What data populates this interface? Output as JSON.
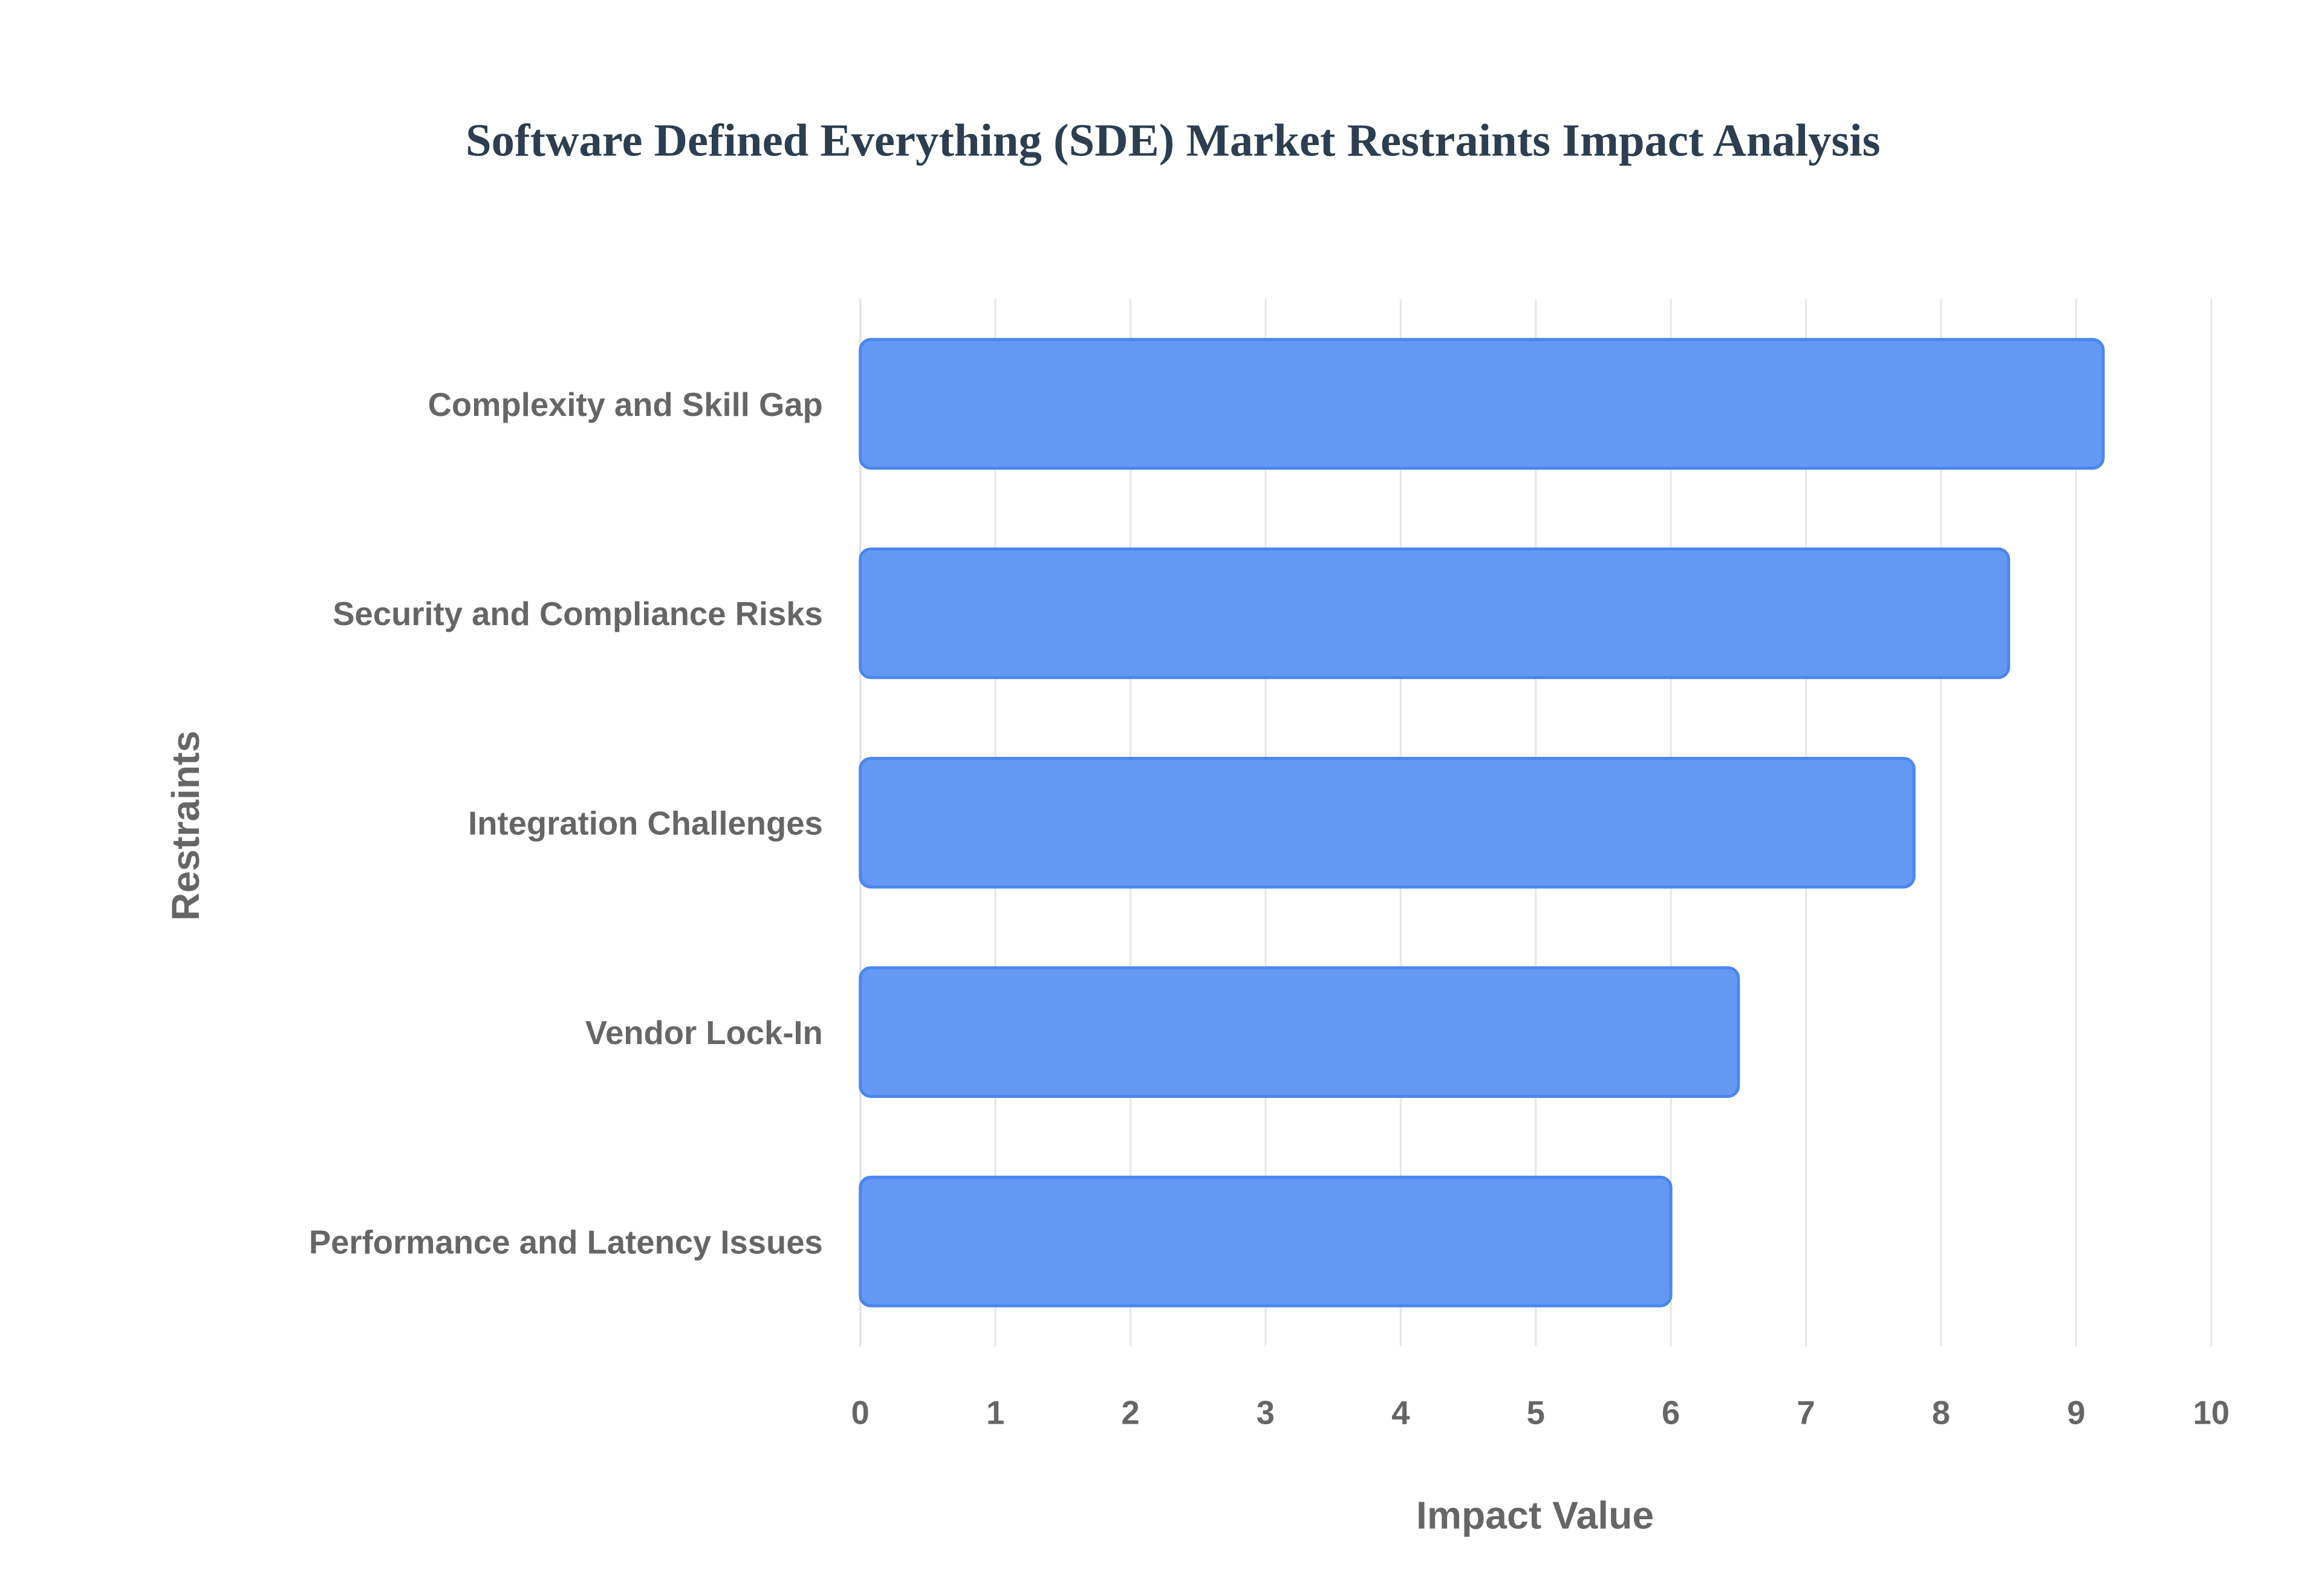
{
  "chart_data": {
    "type": "bar",
    "orientation": "horizontal",
    "title": "Software Defined Everything (SDE) Market Restraints Impact Analysis",
    "xlabel": "Impact Value",
    "ylabel": "Restraints",
    "categories": [
      "Complexity and Skill Gap",
      "Security and Compliance Risks",
      "Integration Challenges",
      "Vendor Lock-In",
      "Performance and Latency Issues"
    ],
    "values": [
      9.2,
      8.5,
      7.8,
      6.5,
      6.0
    ],
    "xlim": [
      0,
      10
    ],
    "xticks": [
      "0",
      "1",
      "2",
      "3",
      "4",
      "5",
      "6",
      "7",
      "8",
      "9",
      "10"
    ],
    "grid": true,
    "legend": "none",
    "colors": {
      "bar_fill": "#6399F4",
      "bar_stroke": "#4A86EE",
      "title": "#2c3e50",
      "text": "#666666"
    }
  }
}
